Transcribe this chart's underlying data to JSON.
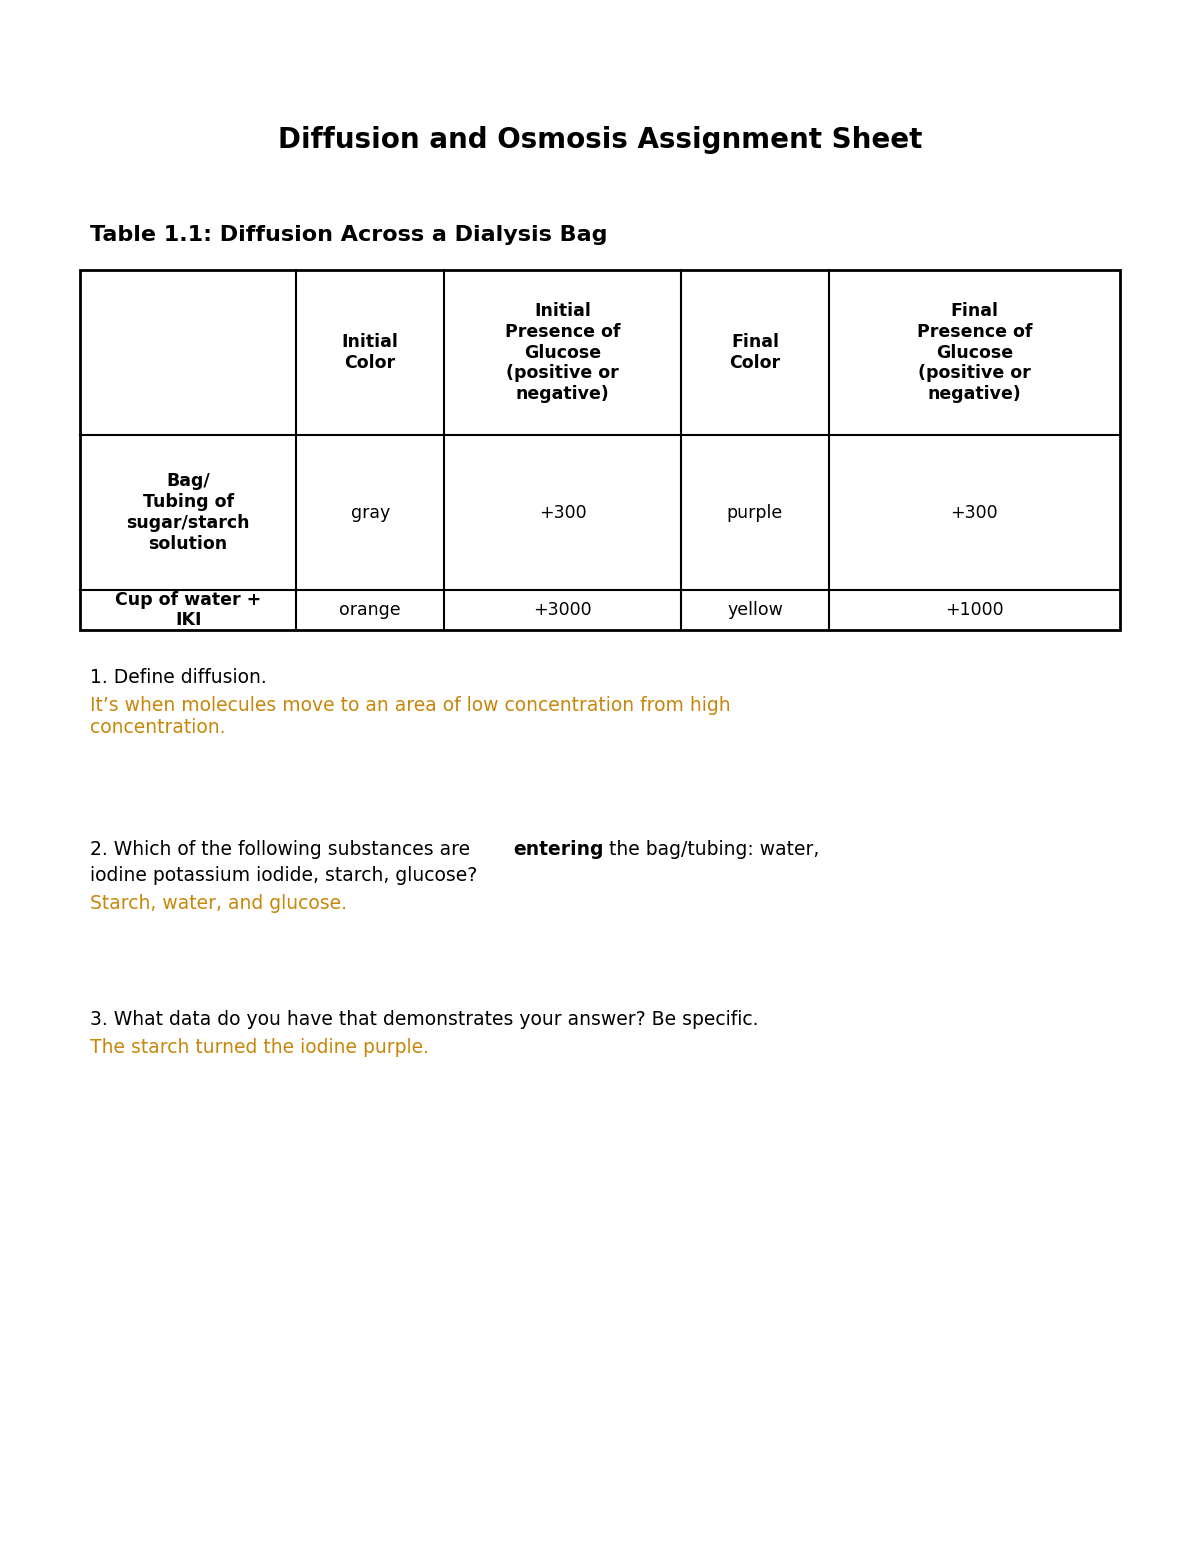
{
  "title": "Diffusion and Osmosis Assignment Sheet",
  "table_title": "Table 1.1: Diffusion Across a Dialysis Bag",
  "table_headers": [
    "",
    "Initial\nColor",
    "Initial\nPresence of\nGlucose\n(positive or\nnegative)",
    "Final\nColor",
    "Final\nPresence of\nGlucose\n(positive or\nnegative)"
  ],
  "table_rows": [
    [
      "Bag/\nTubing of\nsugar/starch\nsolution",
      "gray",
      "+300",
      "purple",
      "+300"
    ],
    [
      "Cup of water +\nIKI",
      "orange",
      "+3000",
      "yellow",
      "+1000"
    ]
  ],
  "q1_label": "1. Define diffusion.",
  "q1_answer": "It’s when molecules move to an area of low concentration from high\nconcentration.",
  "q2_label_pre": "2. Which of the following substances are ",
  "q2_label_bold": "entering",
  "q2_label_post": " the bag/tubing: water,\niodine potassium iodide, starch, glucose?",
  "q2_answer": "Starch, water, and glucose.",
  "q3_label": "3. What data do you have that demonstrates your answer? Be specific.",
  "q3_answer": "The starch turned the iodine purple.",
  "title_color": "#000000",
  "table_title_color": "#000000",
  "question_color": "#000000",
  "answer_color": "#C8860A",
  "background_color": "#ffffff",
  "title_fontsize": 20,
  "table_title_fontsize": 16,
  "question_fontsize": 13.5,
  "answer_fontsize": 13.5,
  "table_fontsize": 12.5
}
